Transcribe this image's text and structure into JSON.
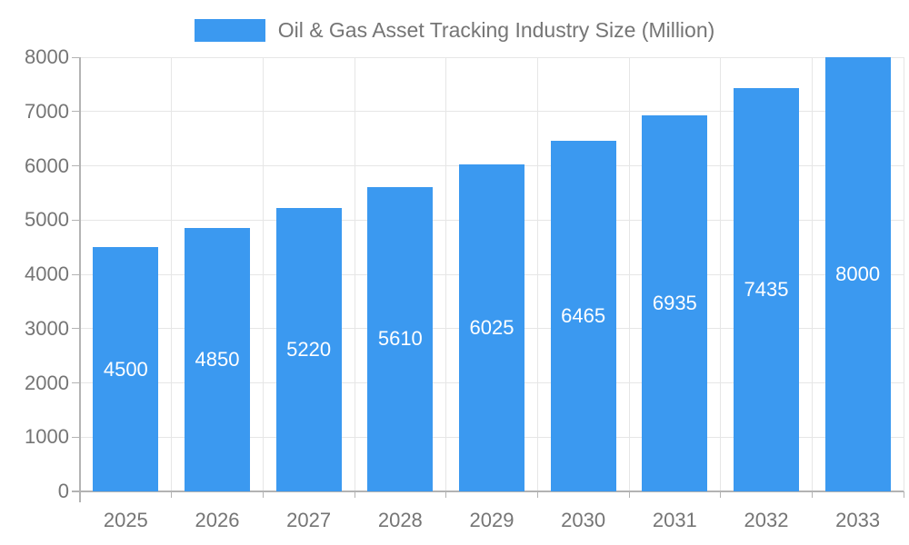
{
  "chart_data": {
    "type": "bar",
    "title": "Oil & Gas Asset Tracking Industry Size (Million)",
    "categories": [
      "2025",
      "2026",
      "2027",
      "2028",
      "2029",
      "2030",
      "2031",
      "2032",
      "2033"
    ],
    "values": [
      4500,
      4850,
      5220,
      5610,
      6025,
      6465,
      6935,
      7435,
      8000
    ],
    "xlabel": "",
    "ylabel": "",
    "ylim": [
      0,
      8000
    ],
    "yticks": [
      0,
      1000,
      2000,
      3000,
      4000,
      5000,
      6000,
      7000,
      8000
    ],
    "grid": true,
    "legend_position": "top-center",
    "colors": {
      "bar": "#3b99f0",
      "bar_value_text": "#ffffff",
      "axis_text": "#757575",
      "grid_line": "#e6e6e6",
      "axis_line": "#b3b3b3"
    }
  }
}
